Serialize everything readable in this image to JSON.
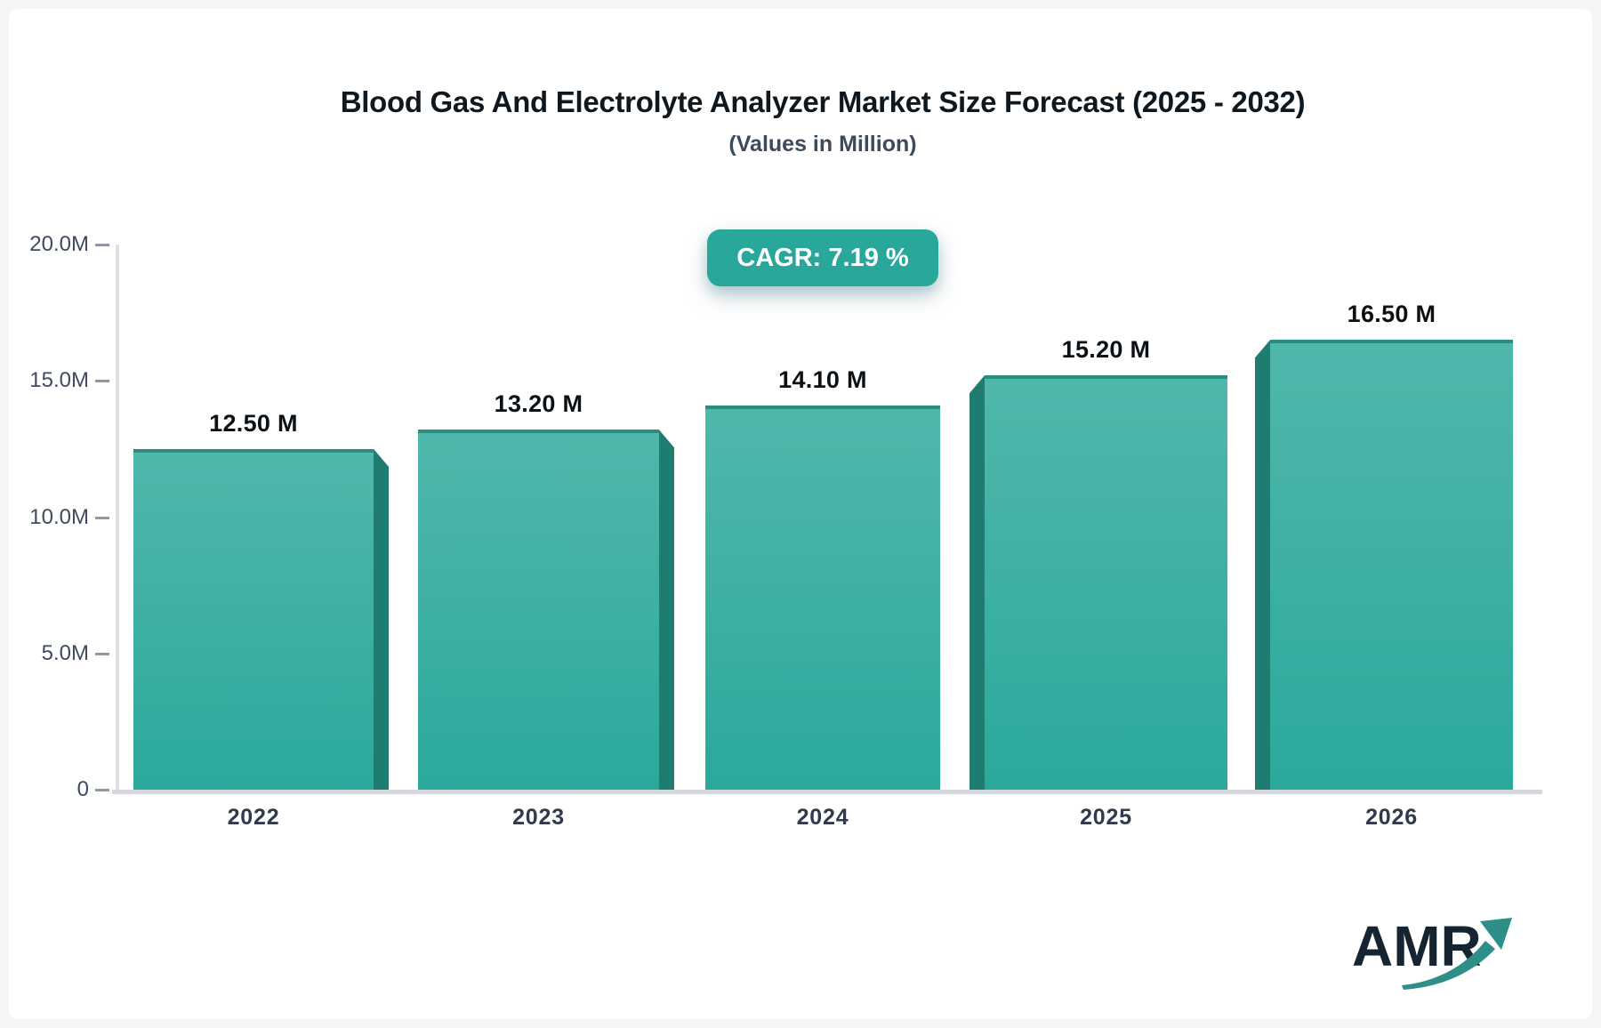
{
  "page": {
    "title": "Blood Gas And Electrolyte Analyzer Market Size Forecast (2025 - 2032)",
    "subtitle": "(Values in Million)"
  },
  "cagr_badge": {
    "label": "CAGR: 7.19 %"
  },
  "chart_data": {
    "type": "bar",
    "title": "Blood Gas And Electrolyte Analyzer Market Size Forecast (2025 - 2032)",
    "subtitle": "(Values in Million)",
    "categories": [
      "2022",
      "2023",
      "2024",
      "2025",
      "2026"
    ],
    "values": [
      12.5,
      13.2,
      14.1,
      15.2,
      16.5
    ],
    "bar_labels": [
      "12.50 M",
      "13.20 M",
      "14.10 M",
      "15.20 M",
      "16.50 M"
    ],
    "unit": "Million",
    "cagr": "7.19 %",
    "xlabel": "",
    "ylabel": "",
    "ylim": [
      0,
      20
    ],
    "y_ticks": [
      "20.0M",
      "15.0M",
      "10.0M",
      "5.0M",
      "0"
    ],
    "y_tick_values": [
      20,
      15,
      10,
      5,
      0
    ],
    "grid": false,
    "legend": false,
    "bar_color_top": "#50b7ab",
    "bar_color_bottom": "#2aa99b",
    "bar_side_color": "#1e7c70",
    "accent_color": "#2aa79b"
  },
  "logo": {
    "text": "AMR"
  }
}
